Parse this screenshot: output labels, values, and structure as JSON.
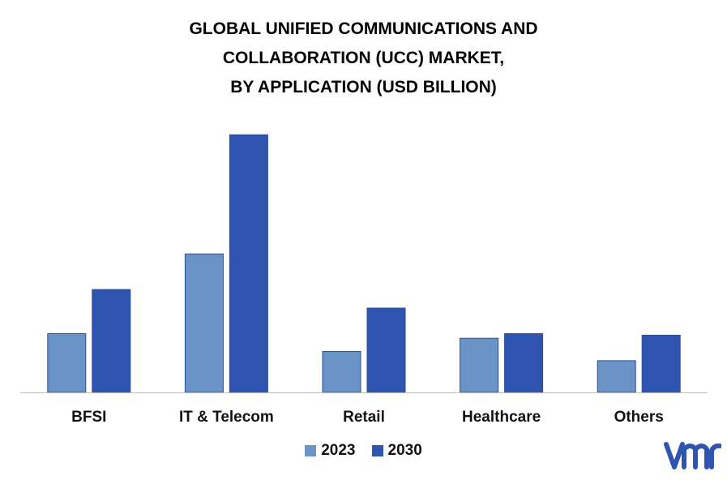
{
  "chart_data": {
    "type": "bar",
    "title_lines": [
      "GLOBAL UNIFIED COMMUNICATIONS AND",
      "COLLABORATION (UCC) MARKET,",
      "BY APPLICATION (USD BILLION)"
    ],
    "categories": [
      "BFSI",
      "IT & Telecom",
      "Retail",
      "Healthcare",
      "Others"
    ],
    "series": [
      {
        "name": "2023",
        "color": "#6a93c8",
        "values": [
          7.6,
          17.9,
          5.3,
          7.0,
          4.1
        ]
      },
      {
        "name": "2030",
        "color": "#2f55b0",
        "values": [
          13.3,
          33.3,
          10.9,
          7.6,
          7.4
        ]
      }
    ],
    "ylim": [
      0,
      35
    ],
    "grid": false,
    "legend_position": "bottom"
  },
  "logo": {
    "text": "vmr",
    "color": "#2f55b0",
    "icon": "vmr-logo"
  }
}
